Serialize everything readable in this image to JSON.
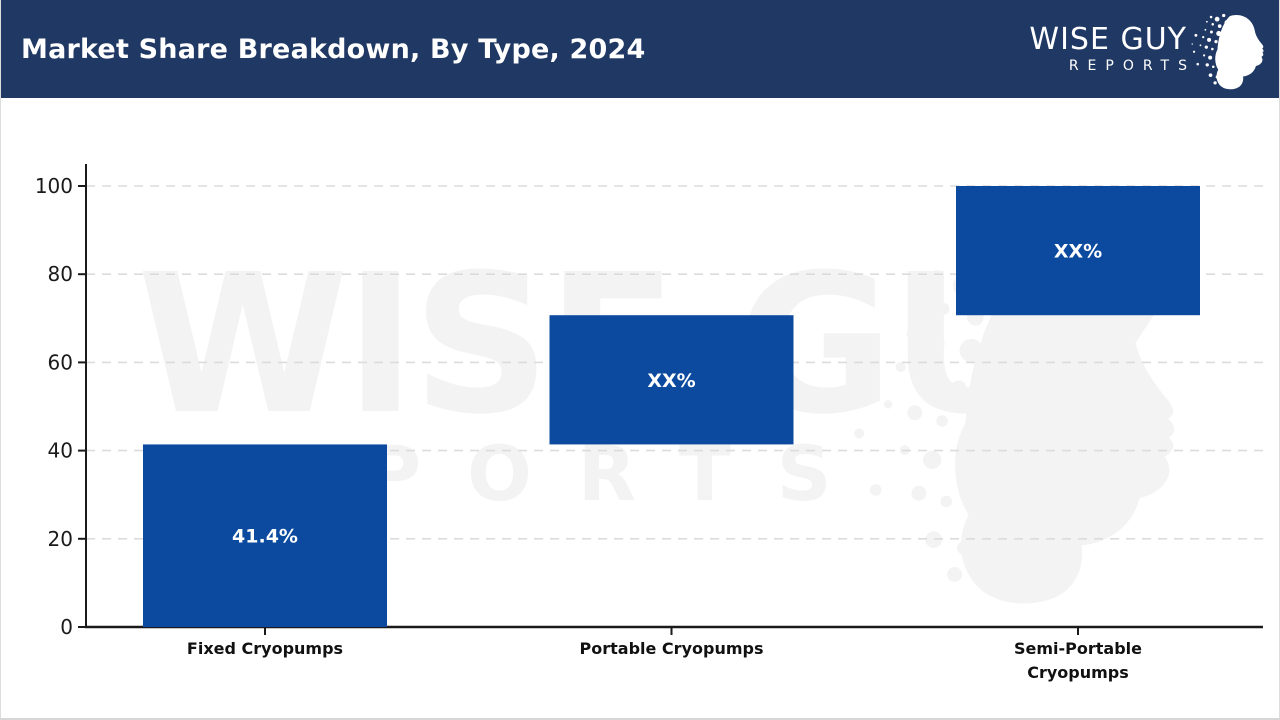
{
  "header": {
    "title": "Market Share Breakdown, By Type, 2024",
    "bg_color": "#203864",
    "logo": {
      "wordmark": "WISE GUY",
      "reports_label": "REPORTS",
      "face_icon": "dotted-face-icon"
    }
  },
  "watermark": {
    "line1": "WISE GUY",
    "line2": "REPORTS",
    "color": "#f3f3f3",
    "face_icon": "dotted-face-icon"
  },
  "chart_data": {
    "type": "bar",
    "subtype": "waterfall",
    "title": "Market Share Breakdown, By Type, 2024",
    "categories": [
      "Fixed Cryopumps",
      "Portable Cryopumps",
      "Semi-Portable\nCryopumps"
    ],
    "bars": [
      {
        "category": "Fixed Cryopumps",
        "start": 0,
        "end": 41.4,
        "label": "41.4%"
      },
      {
        "category": "Portable Cryopumps",
        "start": 41.4,
        "end": 70.7,
        "label": "XX%"
      },
      {
        "category": "Semi-Portable Cryopumps",
        "start": 70.7,
        "end": 100,
        "label": "XX%"
      }
    ],
    "bar_color": "#0b4a9e",
    "bar_label_color": "#ffffff",
    "axis_color": "#1a1a1a",
    "grid_color": "#dcdcdc",
    "grid_style": "dashed horizontal",
    "yticks": [
      0,
      20,
      40,
      60,
      80,
      100
    ],
    "ylim": [
      0,
      105
    ],
    "xlabel": "",
    "ylabel": "",
    "legend": "none"
  }
}
